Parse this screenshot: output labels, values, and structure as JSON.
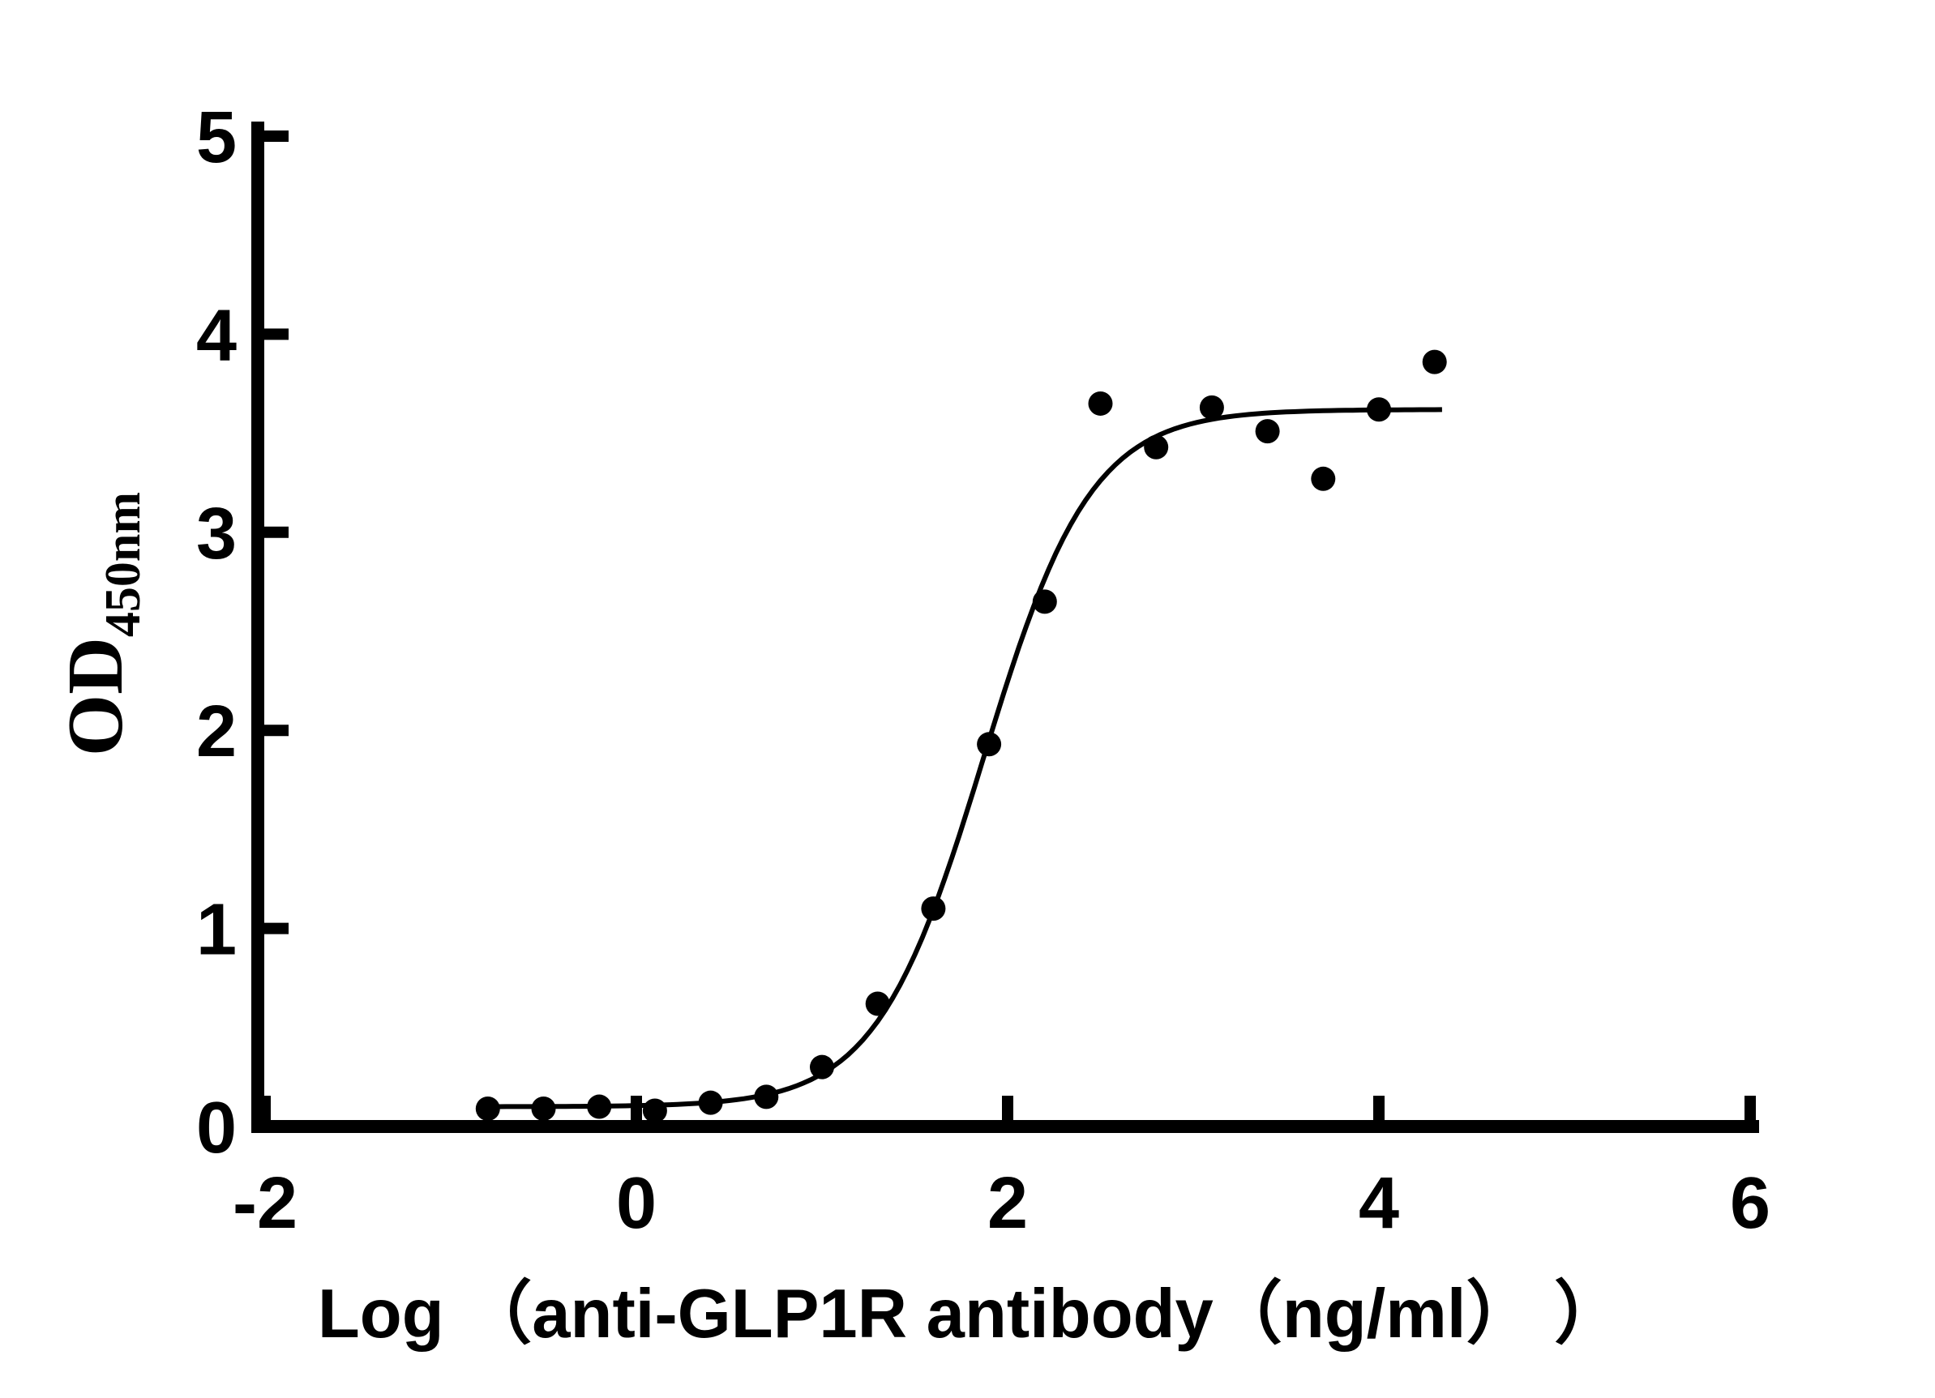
{
  "chart_data": {
    "type": "scatter",
    "title": "",
    "xlabel": "Log （anti-GLP1R antibody（ng/ml） ）",
    "ylabel_main": "OD",
    "ylabel_sub": "450nm",
    "xlim": [
      -2,
      6
    ],
    "ylim": [
      0,
      5
    ],
    "xticks": [
      -2,
      0,
      2,
      4,
      6
    ],
    "yticks": [
      0,
      1,
      2,
      3,
      4,
      5
    ],
    "grid": false,
    "legend": "none",
    "marker": "filled-circle",
    "marker_color": "#000000",
    "curve_color": "#000000",
    "axis_color": "#000000",
    "points": [
      {
        "x": -0.8,
        "y": 0.09
      },
      {
        "x": -0.5,
        "y": 0.09
      },
      {
        "x": -0.2,
        "y": 0.1
      },
      {
        "x": 0.1,
        "y": 0.08
      },
      {
        "x": 0.4,
        "y": 0.12
      },
      {
        "x": 0.7,
        "y": 0.15
      },
      {
        "x": 1.0,
        "y": 0.3
      },
      {
        "x": 1.3,
        "y": 0.62
      },
      {
        "x": 1.6,
        "y": 1.1
      },
      {
        "x": 1.9,
        "y": 1.93
      },
      {
        "x": 2.2,
        "y": 2.65
      },
      {
        "x": 2.5,
        "y": 3.65
      },
      {
        "x": 2.8,
        "y": 3.43
      },
      {
        "x": 3.1,
        "y": 3.63
      },
      {
        "x": 3.4,
        "y": 3.51
      },
      {
        "x": 3.7,
        "y": 3.27
      },
      {
        "x": 4.0,
        "y": 3.62
      },
      {
        "x": 4.3,
        "y": 3.86
      }
    ],
    "fit": {
      "model": "four-parameter-logistic-sigmoid",
      "bottom": 0.1,
      "top": 3.62,
      "logEC50": 1.87,
      "hillslope": 1.5,
      "x_start": -0.82,
      "x_end": 4.34
    }
  }
}
